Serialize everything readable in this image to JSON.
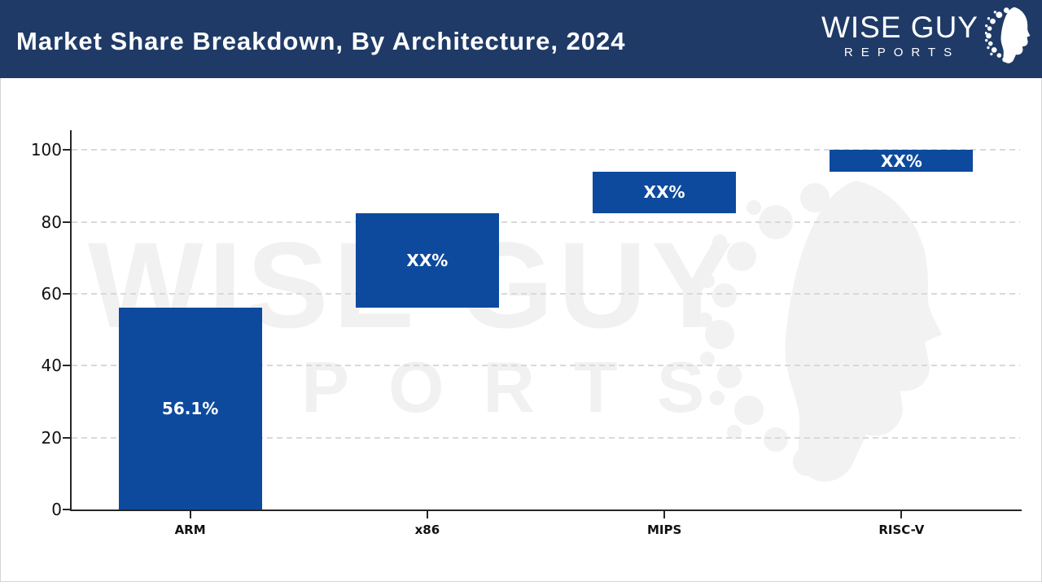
{
  "header": {
    "title": "Market Share Breakdown, By Architecture, 2024",
    "logo": {
      "wordmark": "WISE GUY",
      "subtext": "REPORTS"
    }
  },
  "watermark": {
    "line1": "WISE GUY",
    "line2": "REPORTS"
  },
  "colors": {
    "header_bg": "#1f3a66",
    "bar": "#0d4a9e",
    "grid": "#d9d9d9",
    "axis": "#262626",
    "tick_text": "#111111",
    "bar_label": "#ffffff",
    "frame_border": "#d4d4d4",
    "watermark": "#f1f1f1"
  },
  "chart_data": {
    "type": "bar",
    "subtype": "waterfall",
    "title": "Market Share Breakdown, By Architecture, 2024",
    "categories": [
      "ARM",
      "x86",
      "MIPS",
      "RISC-V"
    ],
    "series": [
      {
        "name": "Market share (%)",
        "segments": [
          [
            0,
            56.1
          ],
          [
            56.1,
            82.5
          ],
          [
            82.5,
            93.9
          ],
          [
            93.9,
            100
          ]
        ],
        "values": [
          56.1,
          26.4,
          11.4,
          6.1
        ]
      }
    ],
    "bar_labels": [
      "56.1%",
      "XX%",
      "XX%",
      "XX%"
    ],
    "xlabel": "",
    "ylabel": "",
    "ylim": [
      0,
      100
    ],
    "yticks": [
      0,
      20,
      40,
      60,
      80,
      100
    ],
    "grid": "horizontal dashed",
    "legend": "none"
  }
}
